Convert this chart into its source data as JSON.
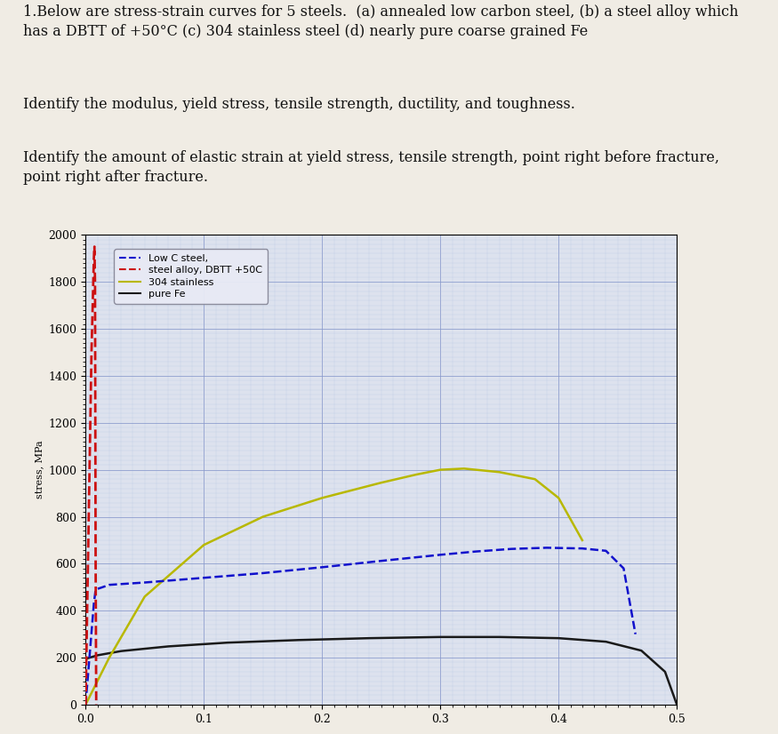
{
  "page_bg": "#f0ece4",
  "plot_bg": "#dde2ee",
  "text1": "1.Below are stress-strain curves for 5 steels.  (a) annealed low carbon steel, (b) a steel alloy which\nhas a DBTT of +50°C (c) 304 stainless steel (d) nearly pure coarse grained Fe",
  "text2": "Identify the modulus, yield stress, tensile strength, ductility, and toughness.",
  "text3": "Identify the amount of elastic strain at yield stress, tensile strength, point right before fracture,\npoint right after fracture.",
  "ylabel": "stress, MPa",
  "xlim": [
    0,
    0.5
  ],
  "ylim": [
    0,
    2000
  ],
  "xticks": [
    0,
    0.1,
    0.2,
    0.3,
    0.4,
    0.5
  ],
  "yticks": [
    0,
    200,
    400,
    600,
    800,
    1000,
    1200,
    1400,
    1600,
    1800,
    2000
  ],
  "major_grid_color": "#8899cc",
  "minor_grid_color": "#aabbdd",
  "legend_bg": "#e8eaf5",
  "legend_edge": "#888899",
  "curves": {
    "low_c_steel": {
      "color": "#1111cc",
      "linestyle": "--",
      "linewidth": 1.8,
      "label": "Low C steel,",
      "x": [
        0,
        0.007,
        0.0085,
        0.02,
        0.05,
        0.1,
        0.15,
        0.2,
        0.25,
        0.3,
        0.33,
        0.36,
        0.39,
        0.42,
        0.44,
        0.455,
        0.465
      ],
      "y": [
        0,
        430,
        490,
        510,
        520,
        540,
        560,
        585,
        612,
        638,
        652,
        663,
        668,
        665,
        655,
        580,
        300
      ]
    },
    "steel_alloy_dbtt": {
      "color": "#cc1111",
      "linestyle": "--",
      "linewidth": 2.0,
      "label": "steel alloy, DBTT +50C",
      "x": [
        0,
        0.001,
        0.003,
        0.005,
        0.007,
        0.0075,
        0.008,
        0.0085,
        0.009
      ],
      "y": [
        0,
        300,
        900,
        1500,
        1900,
        1950,
        1800,
        600,
        0
      ]
    },
    "stainless_304": {
      "color": "#b8b800",
      "linestyle": "-",
      "linewidth": 1.8,
      "label": "304 stainless",
      "x": [
        0,
        0.02,
        0.05,
        0.1,
        0.15,
        0.2,
        0.25,
        0.28,
        0.3,
        0.32,
        0.35,
        0.38,
        0.4,
        0.42
      ],
      "y": [
        0,
        200,
        460,
        680,
        800,
        880,
        945,
        980,
        1000,
        1005,
        990,
        960,
        880,
        700
      ]
    },
    "pure_fe": {
      "color": "#1a1a1a",
      "linestyle": "-",
      "linewidth": 1.8,
      "label": "pure Fe",
      "x": [
        0,
        0.01,
        0.03,
        0.07,
        0.12,
        0.18,
        0.24,
        0.3,
        0.35,
        0.4,
        0.44,
        0.47,
        0.49,
        0.5
      ],
      "y": [
        195,
        210,
        228,
        248,
        264,
        275,
        283,
        288,
        288,
        283,
        268,
        230,
        140,
        0
      ]
    }
  }
}
